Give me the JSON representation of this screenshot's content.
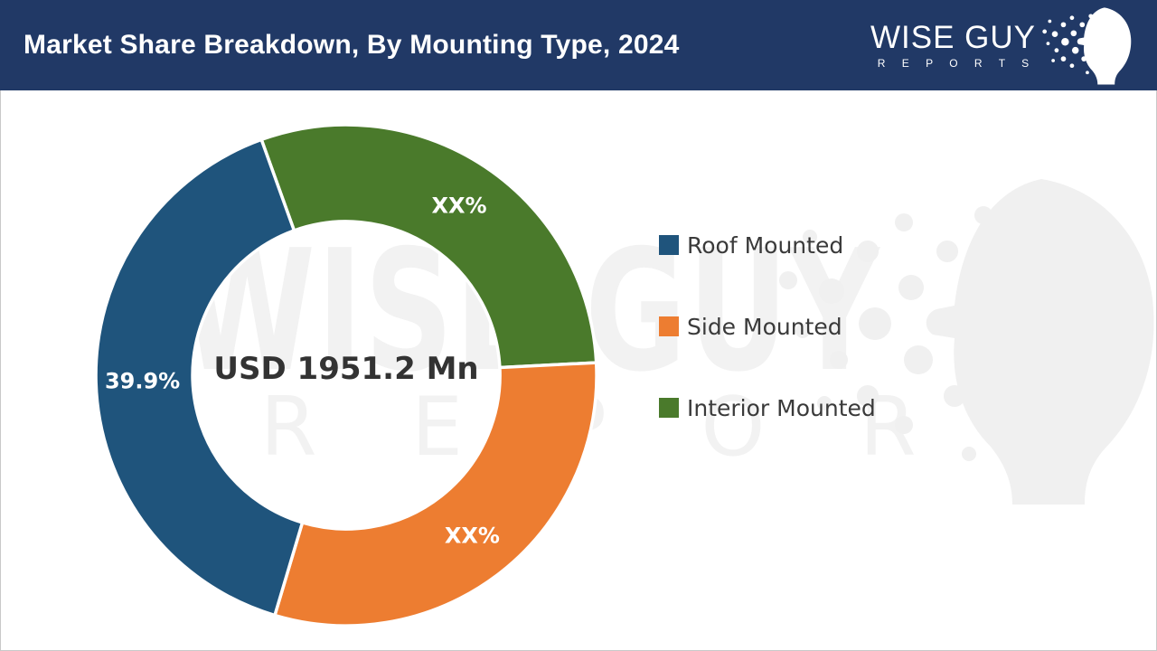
{
  "header": {
    "title": "Market Share Breakdown, By Mounting Type, 2024",
    "bg_color": "#213966",
    "logo": {
      "name": "Wise Guy Reports",
      "line1": "WISE GUY",
      "line2": "R E P O R T S"
    }
  },
  "watermark": {
    "line1": "WISE GUY",
    "line2": "R E P O R T S"
  },
  "chart_data": {
    "type": "pie",
    "variant": "donut",
    "title": "Market Share Breakdown, By Mounting Type, 2024",
    "center_label": "USD 1951.2 Mn",
    "start_angle_deg": -19.8,
    "inner_radius_ratio": 0.614,
    "label_color": "#FFFFFF",
    "center_label_color": "#333333",
    "legend_position": "right",
    "slices": [
      {
        "name": "Interior Mounted",
        "value": 29.7,
        "label": "XX%",
        "color": "#4A7A2B"
      },
      {
        "name": "Side Mounted",
        "value": 30.4,
        "label": "XX%",
        "color": "#ED7D31"
      },
      {
        "name": "Roof Mounted",
        "value": 39.9,
        "label": "39.9%",
        "color": "#1F547C"
      }
    ]
  },
  "legend": {
    "items": [
      {
        "label": "Roof Mounted",
        "color": "#1F547C"
      },
      {
        "label": "Side Mounted",
        "color": "#ED7D31"
      },
      {
        "label": "Interior Mounted",
        "color": "#4A7A2B"
      }
    ]
  }
}
